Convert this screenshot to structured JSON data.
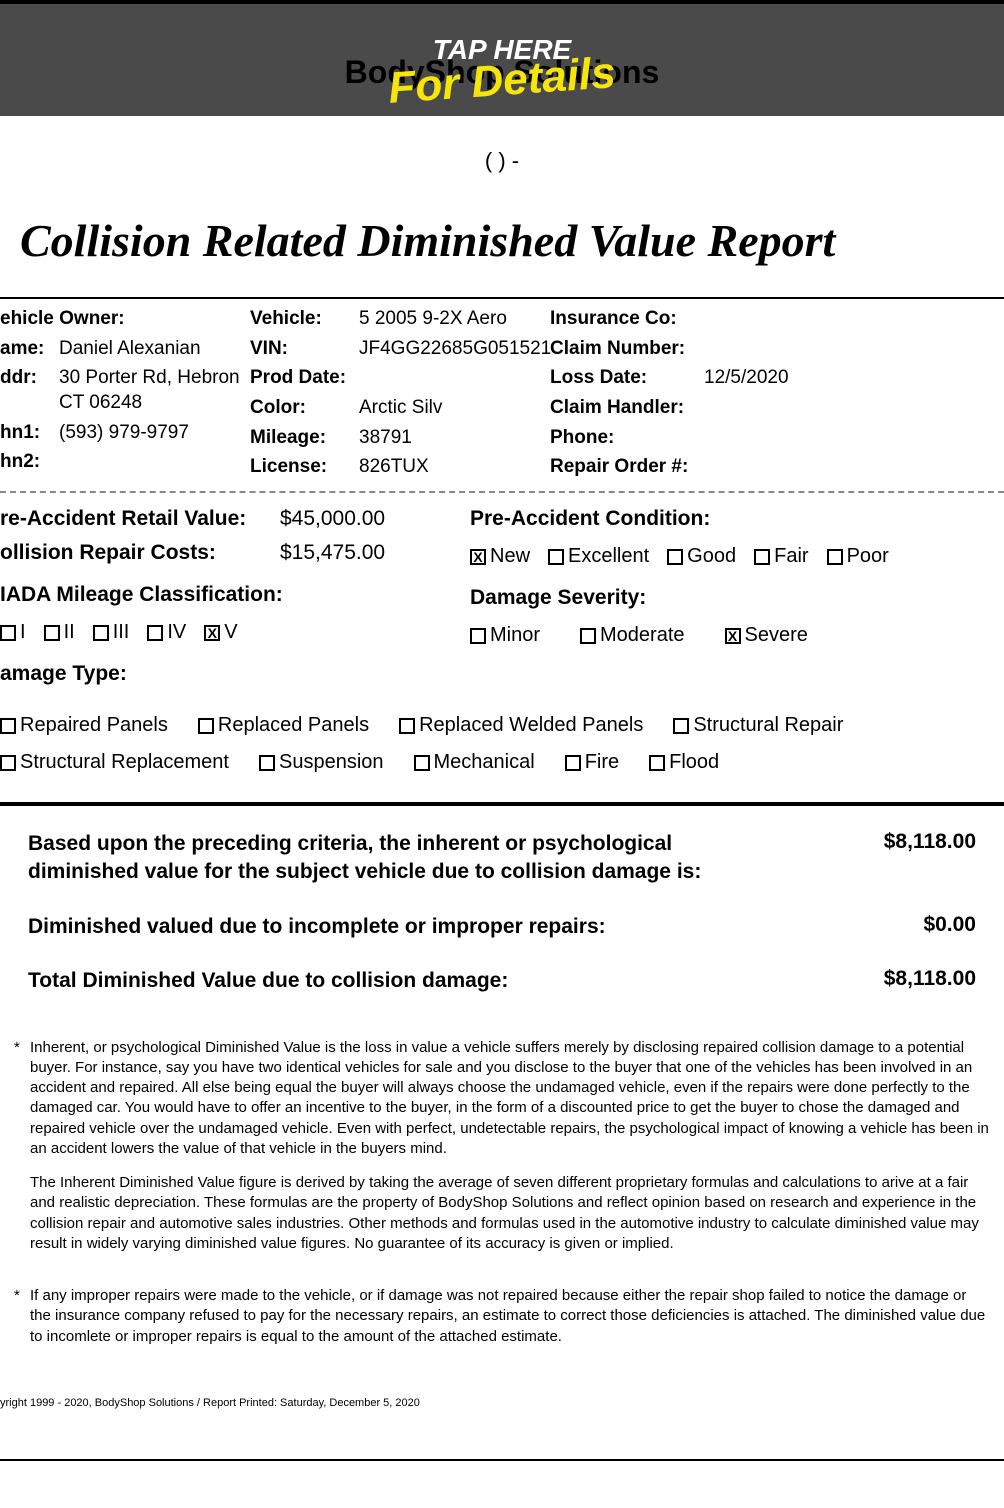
{
  "banner": {
    "bg_text": "BodyShop Solutions",
    "tap_here": "TAP HERE",
    "for_details": "For Details",
    "bg_color": "#4a4a4a",
    "tap_color": "#ffffff",
    "details_color": "#f5e50a"
  },
  "paren": "(  )   -",
  "title": "Collision Related Diminished Value Report",
  "owner": {
    "owner_label": "ehicle Owner:",
    "name_label": "ame:",
    "name": "Daniel Alexanian",
    "addr_label": "ddr:",
    "addr": "30 Porter Rd, Hebron CT 06248",
    "ph1_label": "hn1:",
    "ph1": "(593) 979-9797",
    "ph2_label": "hn2:"
  },
  "vehicle": {
    "vehicle_label": "Vehicle:",
    "vehicle": "5 2005  9-2X Aero",
    "vin_label": "VIN:",
    "vin": "JF4GG22685G051521",
    "prod_label": "Prod Date:",
    "color_label": "Color:",
    "color": "Arctic Silv",
    "mileage_label": "Mileage:",
    "mileage": "38791",
    "license_label": "License:",
    "license": "826TUX"
  },
  "insurance": {
    "co_label": "Insurance Co:",
    "claim_label": "Claim Number:",
    "loss_label": "Loss Date:",
    "loss_date": "12/5/2020",
    "handler_label": "Claim Handler:",
    "phone_label": "Phone:",
    "repair_label": "Repair Order #:"
  },
  "values": {
    "retail_label": "re-Accident Retail Value:",
    "retail": "$45,000.00",
    "repair_label": "ollision Repair Costs:",
    "repair": "$15,475.00"
  },
  "condition": {
    "heading": "Pre-Accident Condition:",
    "options": [
      "New",
      "Excellent",
      "Good",
      "Fair",
      "Poor"
    ],
    "checked": [
      true,
      false,
      false,
      false,
      false
    ]
  },
  "nada": {
    "heading": "IADA Mileage Classification:",
    "options": [
      "I",
      "II",
      "III",
      "IV",
      "V"
    ],
    "checked": [
      false,
      false,
      false,
      false,
      true
    ]
  },
  "severity": {
    "heading": "Damage Severity:",
    "options": [
      "Minor",
      "Moderate",
      "Severe"
    ],
    "checked": [
      false,
      false,
      true
    ]
  },
  "damage_type": {
    "heading": "amage Type:",
    "row1": [
      "Repaired Panels",
      "Replaced Panels",
      "Replaced Welded Panels",
      "Structural Repair"
    ],
    "row2": [
      "Structural Replacement",
      "Suspension",
      "Mechanical",
      "Fire",
      "Flood"
    ]
  },
  "summary": {
    "r1_label": "Based upon the preceding criteria, the inherent or psychological diminished value for the subject vehicle due to collision damage is:",
    "r1_val": "$8,118.00",
    "r2_label": "Diminished valued due to incomplete or improper repairs:",
    "r2_val": "$0.00",
    "r3_label": "Total Diminished Value due to collision damage:",
    "r3_val": "$8,118.00"
  },
  "footnotes": {
    "f1p1": "Inherent, or psychological Diminished Value is the loss in value a vehicle suffers merely by disclosing repaired collision damage to a potential buyer. For instance, say you have two identical vehicles for sale and you disclose to the buyer that one of the vehicles has been involved in an accident and repaired. All else being equal the buyer will always choose the undamaged vehicle, even if the repairs were done perfectly to the damaged car. You would have to offer an incentive to the buyer, in the form of a discounted price to get the buyer to chose the damaged and repaired vehicle over the undamaged vehicle. Even with perfect, undetectable repairs, the psychological impact of knowing a vehicle has been in an accident lowers the value of that vehicle in the buyers mind.",
    "f1p2": "The Inherent Diminished Value figure is derived by taking the average of seven different proprietary formulas and calculations to arive at a fair and realistic depreciation. These formulas are the property of BodyShop Solutions and reflect opinion based on research and experience in the collision repair and automotive sales industries. Other methods and formulas used in the automotive industry to calculate diminished value may result in widely varying diminished value figures. No guarantee of its accuracy is given or implied.",
    "f2": "If any improper repairs were made to the vehicle, or if damage was not repaired because either the repair shop failed to notice the damage or the insurance company refused to pay for the necessary repairs, an estimate to correct those deficiencies is attached. The diminished value due to incomlete or improper repairs is equal to the amount of the attached estimate."
  },
  "copyright": "yright 1999 - 2020, BodyShop Solutions  /  Report Printed:  Saturday, December 5, 2020"
}
